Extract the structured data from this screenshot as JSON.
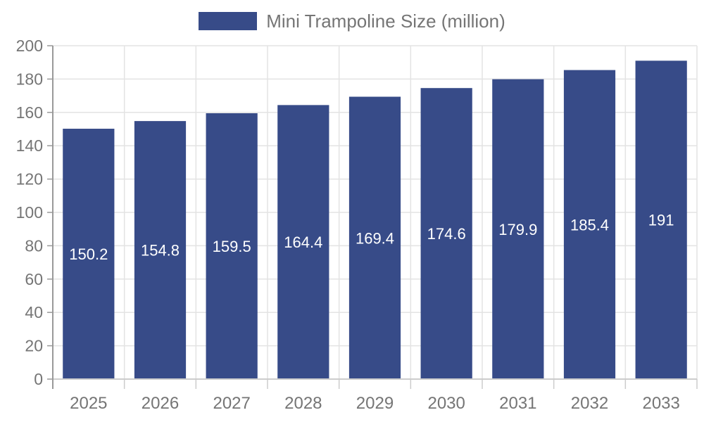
{
  "legend": {
    "label": "Mini Trampoline Size (million)",
    "swatch_color": "#374B88"
  },
  "chart_data": {
    "type": "bar",
    "title": "",
    "xlabel": "",
    "ylabel": "",
    "categories": [
      "2025",
      "2026",
      "2027",
      "2028",
      "2029",
      "2030",
      "2031",
      "2032",
      "2033"
    ],
    "values": [
      150.2,
      154.8,
      159.5,
      164.4,
      169.4,
      174.6,
      179.9,
      185.4,
      191
    ],
    "series_name": "Mini Trampoline Size (million)",
    "ylim": [
      0,
      200
    ],
    "ytick_step": 20,
    "grid": true,
    "legend_position": "top",
    "bar_color": "#374B88",
    "value_label_color": "#ffffff",
    "axis_text_color": "#757575",
    "gridline_color": "#e3e3e3",
    "y_axis_line_color": "#999999",
    "x_axis_line_color": "#cccccc"
  }
}
